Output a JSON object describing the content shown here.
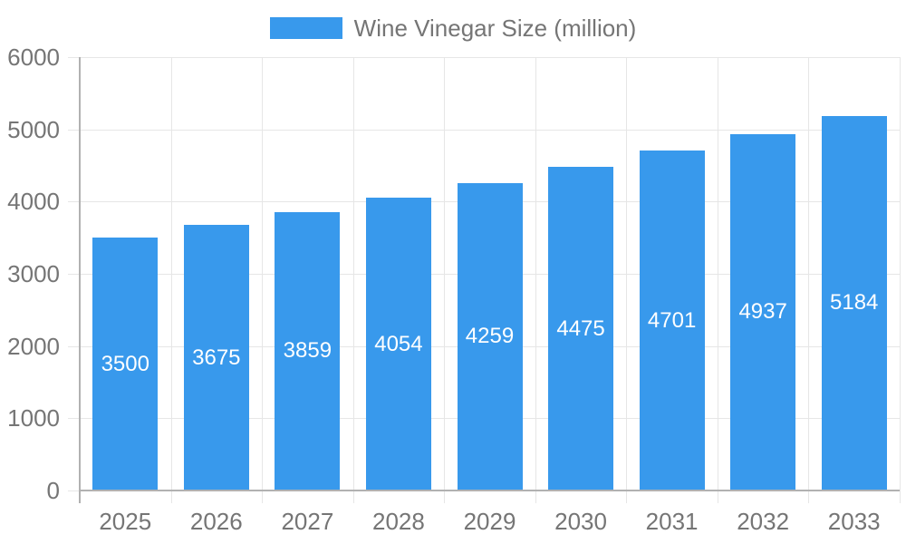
{
  "chart_data": {
    "type": "bar",
    "legend": {
      "label": "Wine Vinegar Size (million)",
      "position": "top"
    },
    "categories": [
      "2025",
      "2026",
      "2027",
      "2028",
      "2029",
      "2030",
      "2031",
      "2032",
      "2033"
    ],
    "series": [
      {
        "name": "Wine Vinegar Size (million)",
        "values": [
          3500,
          3675,
          3859,
          4054,
          4259,
          4475,
          4701,
          4937,
          5184
        ]
      }
    ],
    "value_labels_visible": true,
    "title": "",
    "xlabel": "",
    "ylabel": "",
    "ylim": [
      0,
      6000
    ],
    "y_ticks": [
      0,
      1000,
      2000,
      3000,
      4000,
      5000,
      6000
    ],
    "grid": true,
    "colors": {
      "bar": "#3899ec",
      "value_label": "#ffffff",
      "axis_text": "#757575",
      "grid_line": "#e6e6e6",
      "axis_line": "#b1b1b1",
      "background": "#ffffff"
    }
  }
}
